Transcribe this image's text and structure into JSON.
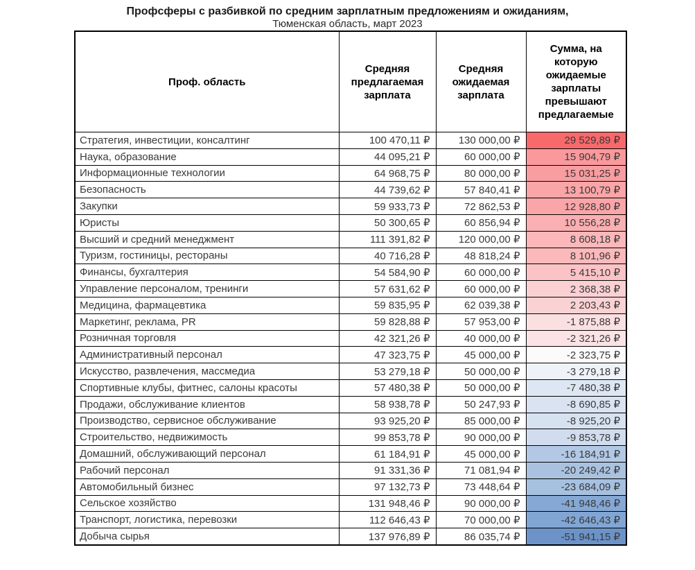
{
  "title": "Профсферы с разбивкой по средним зарплатным предложениям и ожиданиям,",
  "subtitle": "Тюменская область, март 2023",
  "currency_suffix": "₽",
  "columns": {
    "area": "Проф. область",
    "offered": "Средняя предлагаемая зарплата",
    "expected": "Средняя ожидаемая зарплата",
    "delta": "Сумма, на которую ожидаемые зарплаты превышают предлагаемые"
  },
  "rows": [
    {
      "area": "Стратегия, инвестиции, консалтинг",
      "offered": "100 470,11 ₽",
      "expected": "130 000,00 ₽",
      "delta": "29 529,89 ₽",
      "delta_color": "#F8696B"
    },
    {
      "area": "Наука, образование",
      "offered": "44 095,21 ₽",
      "expected": "60 000,00 ₽",
      "delta": "15 904,79 ₽",
      "delta_color": "#F9999C"
    },
    {
      "area": "Информационные технологии",
      "offered": "64 968,75 ₽",
      "expected": "80 000,00 ₽",
      "delta": "15 031,25 ₽",
      "delta_color": "#F99DA0"
    },
    {
      "area": "Безопасность",
      "offered": "44 739,62 ₽",
      "expected": "57 840,41 ₽",
      "delta": "13 100,79 ₽",
      "delta_color": "#FAA5A8"
    },
    {
      "area": "Закупки",
      "offered": "59 933,73 ₽",
      "expected": "72 862,53 ₽",
      "delta": "12 928,80 ₽",
      "delta_color": "#FAA6A9"
    },
    {
      "area": "Юристы",
      "offered": "50 300,65 ₽",
      "expected": "60 856,94 ₽",
      "delta": "10 556,28 ₽",
      "delta_color": "#FAAFB2"
    },
    {
      "area": "Высший и средний менеджмент",
      "offered": "111 391,82 ₽",
      "expected": "120 000,00 ₽",
      "delta": "8 608,18 ₽",
      "delta_color": "#FBB7B9"
    },
    {
      "area": "Туризм, гостиницы, рестораны",
      "offered": "40 716,28 ₽",
      "expected": "48 818,24 ₽",
      "delta": "8 101,96 ₽",
      "delta_color": "#FBB9BB"
    },
    {
      "area": "Финансы, бухгалтерия",
      "offered": "54 584,90 ₽",
      "expected": "60 000,00 ₽",
      "delta": "5 415,10 ₽",
      "delta_color": "#FBC3C6"
    },
    {
      "area": "Управление персоналом, тренинги",
      "offered": "57 631,62 ₽",
      "expected": "60 000,00 ₽",
      "delta": "2 368,38 ₽",
      "delta_color": "#FBD0D3"
    },
    {
      "area": "Медицина, фармацевтика",
      "offered": "59 835,95 ₽",
      "expected": "62 039,38 ₽",
      "delta": "2 203,43 ₽",
      "delta_color": "#FBD2D4"
    },
    {
      "area": "Маркетинг, реклама, PR",
      "offered": "59 828,88 ₽",
      "expected": "57 953,00 ₽",
      "delta": "-1 875,88 ₽",
      "delta_color": "#FBE0E2"
    },
    {
      "area": "Розничная торговля",
      "offered": "42 321,26 ₽",
      "expected": "40 000,00 ₽",
      "delta": "-2 321,26 ₽",
      "delta_color": "#FBE3E5"
    },
    {
      "area": "Административный персонал",
      "offered": "47 323,75 ₽",
      "expected": "45 000,00 ₽",
      "delta": "-2 323,75 ₽",
      "delta_color": "#FCFAFB"
    },
    {
      "area": "Искусство, развлечения, массмедиа",
      "offered": "53 279,18 ₽",
      "expected": "50 000,00 ₽",
      "delta": "-3 279,18 ₽",
      "delta_color": "#EFF3F9"
    },
    {
      "area": "Спортивные клубы, фитнес, салоны красоты",
      "offered": "57 480,38 ₽",
      "expected": "50 000,00 ₽",
      "delta": "-7 480,38 ₽",
      "delta_color": "#DDE7F4"
    },
    {
      "area": "Продажи, обслуживание клиентов",
      "offered": "58 938,78 ₽",
      "expected": "50 247,93 ₽",
      "delta": "-8 690,85 ₽",
      "delta_color": "#D9E3F2"
    },
    {
      "area": "Производство, сервисное обслуживание",
      "offered": "93 925,20 ₽",
      "expected": "85 000,00 ₽",
      "delta": "-8 925,20 ₽",
      "delta_color": "#D7E2F1"
    },
    {
      "area": "Строительство, недвижимость",
      "offered": "99 853,78 ₽",
      "expected": "90 000,00 ₽",
      "delta": "-9 853,78 ₽",
      "delta_color": "#D1DDEE"
    },
    {
      "area": "Домашний, обслуживающий персонал",
      "offered": "61 184,91 ₽",
      "expected": "45 000,00 ₽",
      "delta": "-16 184,91 ₽",
      "delta_color": "#B3C8E4"
    },
    {
      "area": "Рабочий персонал",
      "offered": "91 331,36 ₽",
      "expected": "71 081,94 ₽",
      "delta": "-20 249,42 ₽",
      "delta_color": "#AAC2E0"
    },
    {
      "area": "Автомобильный бизнес",
      "offered": "97 132,73 ₽",
      "expected": "73 448,64 ₽",
      "delta": "-23 684,09 ₽",
      "delta_color": "#A6C0E0"
    },
    {
      "area": "Сельское хозяйство",
      "offered": "131 948,46 ₽",
      "expected": "90 000,00 ₽",
      "delta": "-41 948,46 ₽",
      "delta_color": "#85A8D4"
    },
    {
      "area": "Транспорт, логистика, перевозки",
      "offered": "112 646,43 ₽",
      "expected": "70 000,00 ₽",
      "delta": "-42 646,43 ₽",
      "delta_color": "#82A6D3"
    },
    {
      "area": "Добыча сырья",
      "offered": "137 976,89 ₽",
      "expected": "86 035,74 ₽",
      "delta": "-51 941,15 ₽",
      "delta_color": "#6B93C8"
    }
  ],
  "chart_data": {
    "type": "table",
    "title": "Профсферы с разбивкой по средним зарплатным предложениям и ожиданиям,",
    "subtitle": "Тюменская область, март 2023",
    "columns": [
      "Проф. область",
      "Средняя предлагаемая зарплата",
      "Средняя ожидаемая зарплата",
      "Сумма, на которую ожидаемые зарплаты превышают предлагаемые"
    ],
    "categories": [
      "Стратегия, инвестиции, консалтинг",
      "Наука, образование",
      "Информационные технологии",
      "Безопасность",
      "Закупки",
      "Юристы",
      "Высший и средний менеджмент",
      "Туризм, гостиницы, рестораны",
      "Финансы, бухгалтерия",
      "Управление персоналом, тренинги",
      "Медицина, фармацевтика",
      "Маркетинг, реклама, PR",
      "Розничная торговля",
      "Административный персонал",
      "Искусство, развлечения, массмедиа",
      "Спортивные клубы, фитнес, салоны красоты",
      "Продажи, обслуживание клиентов",
      "Производство, сервисное обслуживание",
      "Строительство, недвижимость",
      "Домашний, обслуживающий персонал",
      "Рабочий персонал",
      "Автомобильный бизнес",
      "Сельское хозяйство",
      "Транспорт, логистика, перевозки",
      "Добыча сырья"
    ],
    "series": [
      {
        "name": "Средняя предлагаемая зарплата",
        "values": [
          100470.11,
          44095.21,
          64968.75,
          44739.62,
          59933.73,
          50300.65,
          111391.82,
          40716.28,
          54584.9,
          57631.62,
          59835.95,
          59828.88,
          42321.26,
          47323.75,
          53279.18,
          57480.38,
          58938.78,
          93925.2,
          99853.78,
          61184.91,
          91331.36,
          97132.73,
          131948.46,
          112646.43,
          137976.89
        ]
      },
      {
        "name": "Средняя ожидаемая зарплата",
        "values": [
          130000.0,
          60000.0,
          80000.0,
          57840.41,
          72862.53,
          60856.94,
          120000.0,
          48818.24,
          60000.0,
          60000.0,
          62039.38,
          57953.0,
          40000.0,
          45000.0,
          50000.0,
          50000.0,
          50247.93,
          85000.0,
          90000.0,
          45000.0,
          71081.94,
          73448.64,
          90000.0,
          70000.0,
          86035.74
        ]
      },
      {
        "name": "Сумма, на которую ожидаемые зарплаты превышают предлагаемые",
        "values": [
          29529.89,
          15904.79,
          15031.25,
          13100.79,
          12928.8,
          10556.28,
          8608.18,
          8101.96,
          5415.1,
          2368.38,
          2203.43,
          -1875.88,
          -2321.26,
          -2323.75,
          -3279.18,
          -7480.38,
          -8690.85,
          -8925.2,
          -9853.78,
          -16184.91,
          -20249.42,
          -23684.09,
          -41948.46,
          -42646.43,
          -51941.15
        ]
      }
    ],
    "color_scale": {
      "applies_to": "Сумма, на которую ожидаемые зарплаты превышают предлагаемые",
      "max_color": "#F8696B",
      "mid_color": "#FCFCFF",
      "min_color": "#5A8AC6"
    },
    "grid": true,
    "currency": "₽"
  }
}
